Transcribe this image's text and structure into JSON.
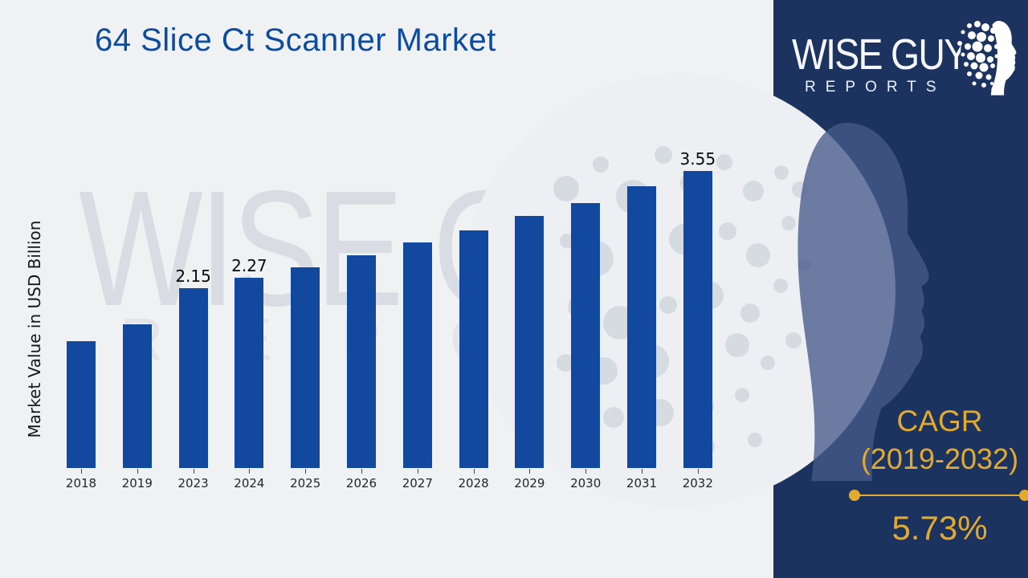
{
  "title": "64 Slice Ct Scanner Market",
  "colors": {
    "bg": "#f0f1f3",
    "navy": "#1c3360",
    "gold": "#e2aa2e",
    "bar": "#12489e",
    "title": "#0d4b9d"
  },
  "chart_data": {
    "type": "bar",
    "title": "64 Slice Ct Scanner Market",
    "xlabel": "",
    "ylabel": "Market Value in USD Billion",
    "categories": [
      "2018",
      "2019",
      "2023",
      "2024",
      "2025",
      "2026",
      "2027",
      "2028",
      "2029",
      "2030",
      "2031",
      "2032"
    ],
    "values": [
      1.52,
      1.72,
      2.15,
      2.27,
      2.4,
      2.54,
      2.7,
      2.84,
      3.01,
      3.17,
      3.37,
      3.55
    ],
    "bar_labels": [
      "",
      "",
      "2.15",
      "2.27",
      "",
      "",
      "",
      "",
      "",
      "",
      "",
      "3.55"
    ],
    "ylim": [
      0,
      3.9
    ],
    "grid": false,
    "legend": false,
    "bar_color": "#12489e"
  },
  "watermark": {
    "line1": "WISE GUY",
    "line2": "REPORTS"
  },
  "logo": {
    "line1": "WISE GUY",
    "line2": "REPORTS"
  },
  "sidebar": {
    "cagr_label": "CAGR",
    "cagr_range": "(2019-2032)",
    "cagr_value": "5.73%"
  }
}
